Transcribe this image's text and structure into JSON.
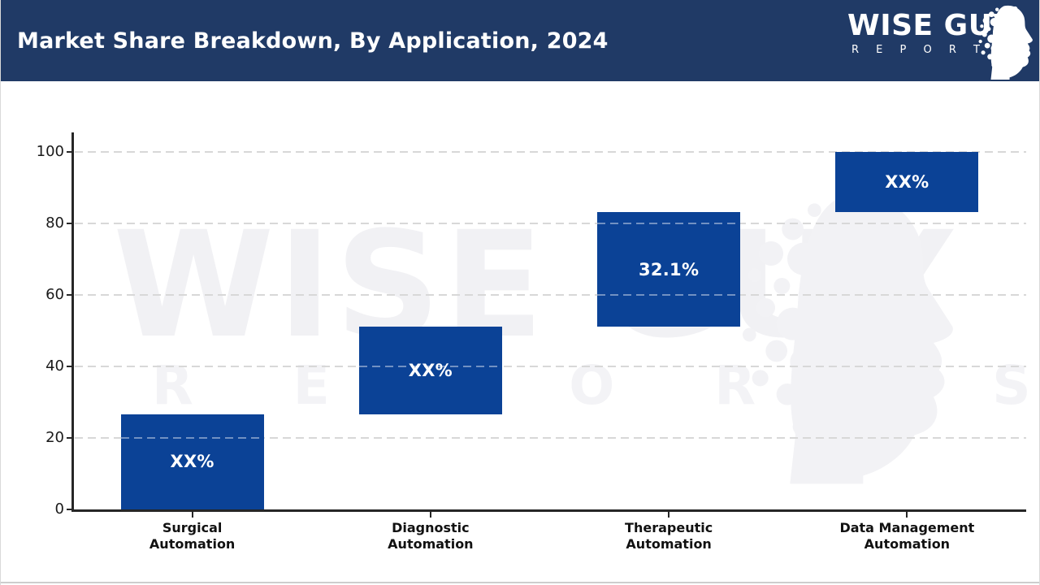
{
  "header": {
    "title": "Market Share Breakdown, By Application, 2024",
    "logo": {
      "wordmark": "WISE GUY",
      "subtext": "R E P O R T S"
    }
  },
  "watermark": {
    "wordmark": "WISE GUY",
    "subtext": "R E P O R T S"
  },
  "chart_data": {
    "type": "bar",
    "subtype": "waterfall-floating-bars",
    "title": "Market Share Breakdown, By Application, 2024",
    "xlabel": "",
    "ylabel": "",
    "categories": [
      "Surgical\nAutomation",
      "Diagnostic\nAutomation",
      "Therapeutic\nAutomation",
      "Data Management\nAutomation"
    ],
    "segments": [
      {
        "category": "Surgical\nAutomation",
        "start": 0,
        "end": 26.6,
        "label": "XX%"
      },
      {
        "category": "Diagnostic\nAutomation",
        "start": 26.6,
        "end": 51.1,
        "label": "XX%"
      },
      {
        "category": "Therapeutic\nAutomation",
        "start": 51.1,
        "end": 83.2,
        "label": "32.1%"
      },
      {
        "category": "Data Management\nAutomation",
        "start": 83.2,
        "end": 100,
        "label": "XX%"
      }
    ],
    "yticks": [
      0,
      20,
      40,
      60,
      80,
      100
    ],
    "ylim": [
      0,
      105.5
    ],
    "grid": true,
    "grid_style": "dashed",
    "legend": "none",
    "colors": {
      "bar": "#0B4296",
      "bar_label": "#ffffff",
      "header_bg": "#203A66",
      "axis": "#262626",
      "tick_text": "#1a1a1a",
      "gridline": "#d8d8d8",
      "watermark_text": "#f1f1f4"
    }
  }
}
